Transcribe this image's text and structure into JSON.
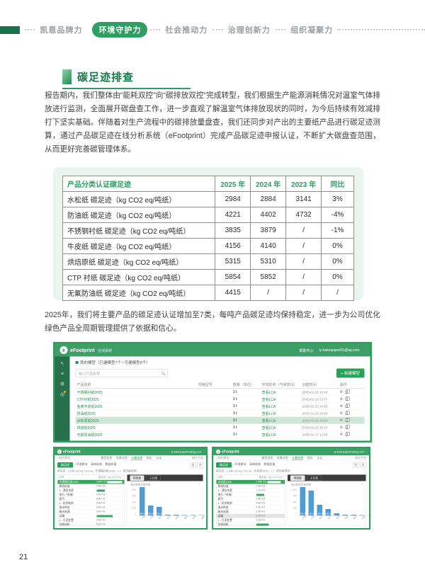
{
  "page_number": "21",
  "colors": {
    "accent_green": "#2f9e63",
    "app_border_green": "#2aa158",
    "bar_blue": "#4f9bd5",
    "panel_bg": "#e9f4ee"
  },
  "top_nav": {
    "items": [
      {
        "label": "凯恩品牌力",
        "cls": ""
      },
      {
        "label": "环境守护力",
        "cls": "active"
      },
      {
        "label": "社会推动力",
        "cls": ""
      },
      {
        "label": "治理创新力",
        "cls": ""
      },
      {
        "label": "组织凝聚力",
        "cls": ""
      }
    ]
  },
  "section": {
    "title": "碳足迹排查"
  },
  "paragraphs": {
    "p1": "报告期内，我们整体由“能耗双控”向“碳排放双控”完成转型，我们根据生产能源消耗情况对温室气体排放进行监测，全面展开碳盘查工作，进一步直观了解温室气体排放现状的同时，为今后持续有效减排打下坚实基础。伴随着对生产流程中的碳排放量盘查，我们还同步对产出的主要纸产品进行碳足迹测算，通过产品碳足迹在线分析系统（eFootprint）完成产品碳足迹申报认证，不断扩大碳盘查范围，从而更好完善碳管理体系。",
    "p2": "2025年，我们将主要产品的碳足迹认证增加至7类，每吨产品碳足迹均保持稳定，进一步为公司优化绿色产品全周期管理提供了依据和信心。"
  },
  "footprint_table": {
    "headers": [
      "产品分类认证碳足迹",
      "2025 年",
      "2024 年",
      "2023 年",
      "同比"
    ],
    "rows": [
      [
        "水松纸 碳足迹（kg CO2 eq/吨纸）",
        "2984",
        "2884",
        "3141",
        "3%"
      ],
      [
        "防油纸 碳足迹（kg CO2 eq/吨纸）",
        "4221",
        "4402",
        "4732",
        "-4%"
      ],
      [
        "不锈钢衬纸 碳足迹（kg CO2 eq/吨纸）",
        "3835",
        "3879",
        "/",
        "-1%"
      ],
      [
        "牛皮纸 碳足迹（kg CO2 eq/吨纸）",
        "4156",
        "4140",
        "/",
        "0%"
      ],
      [
        "烘焙原纸 碳足迹（kg CO2 eq/吨纸）",
        "5315",
        "5310",
        "/",
        "0%"
      ],
      [
        "CTP 衬纸 碳足迹（kg CO2 eq/吨纸）",
        "5854",
        "5852",
        "/",
        "0%"
      ],
      [
        "无氟防油纸 碳足迹（kg CO2 eq/吨纸）",
        "4415",
        "/",
        "/",
        "/"
      ]
    ]
  },
  "app_main": {
    "brand": "eFootprint",
    "brand_sub": "在线系统",
    "help_link": "帮助中心",
    "account": "ly-kaienpaper01@qq.com",
    "sidebar_icons": [
      {
        "name": "cursor-icon",
        "glyph": "↖",
        "badge_cls": ""
      },
      {
        "name": "menu-icon",
        "glyph": "≡",
        "badge_cls": ""
      },
      {
        "name": "gear-icon",
        "glyph": "⚙",
        "badge_cls": ""
      },
      {
        "name": "bell-icon",
        "glyph": "◎",
        "badge_cls": "on"
      }
    ],
    "breadcrumb": "我的模型（已建模型7个 / 可建模型8个）",
    "search_placeholder": "输入产品名称",
    "new_button": "+ 新建模型",
    "columns": [
      "产品名称",
      "规格型号",
      "数量（单位）",
      "环境影响（气候变化）",
      "创建时间",
      "操作"
    ],
    "rows": [
      {
        "name": "不锈钢衬纸2025",
        "spec": "",
        "qty": "1 t",
        "impact": "查看LCA",
        "time": "2025-01-23 13:42",
        "cls": ""
      },
      {
        "name": "CTP衬纸2025",
        "spec": "",
        "qty": "1 t",
        "impact": "查看LCA",
        "time": "2025-01-23 13:37",
        "cls": ""
      },
      {
        "name": "金黄牛皮纸2025",
        "spec": "",
        "qty": "1 t",
        "impact": "查看LCA",
        "time": "2025-01-23 14:55",
        "cls": ""
      },
      {
        "name": "防油纸2025",
        "spec": "",
        "qty": "1 t",
        "impact": "查看LCA",
        "time": "2025-01-23 14:46",
        "cls": ""
      },
      {
        "name": "水松原纸2025",
        "spec": "",
        "qty": "1 t",
        "impact": "查看LCA",
        "time": "2025-01-23 14:02",
        "cls": "row-hl"
      },
      {
        "name": "烘焙纸2025",
        "spec": "",
        "qty": "1 t",
        "impact": "查看LCA",
        "time": "2025-01-23 15:27",
        "cls": ""
      },
      {
        "name": "无氟防油纸2025",
        "spec": "",
        "qty": "1 t",
        "impact": "查看LCA",
        "time": "2025-01-17 12:55",
        "cls": ""
      }
    ]
  },
  "app_mini": [
    {
      "brand": "eFootprint",
      "account": "ly-kaienpaper01@qq.com",
      "back_link": "‹ 我的模型",
      "nav_links": [
        {
          "label": "模型信息",
          "cls": ""
        },
        {
          "label": "实景过程",
          "cls": ""
        },
        {
          "label": "计算结果",
          "cls": "on"
        },
        {
          "label": "报告",
          "cls": ""
        },
        {
          "label": "认证",
          "cls": ""
        }
      ],
      "manual_link": "操作手册",
      "tabs": [
        {
          "label": "碳足迹",
          "cls": "tab-active"
        },
        {
          "label": "环境影响",
          "cls": ""
        },
        {
          "label": "清单结果",
          "cls": ""
        },
        {
          "label": "数据质量",
          "cls": ""
        }
      ],
      "view_buttons": [
        "图",
        "表"
      ],
      "info_line": "碳足迹：3.84E+03 kg CO2 eq（不锈钢衬纸2025，1 t，按贡献排序）",
      "list_headers": [
        "名称",
        "碳足迹（kg CO2 eq）"
      ],
      "rows": [
        {
          "name": "不锈钢衬纸2025",
          "value": "3.84E+03",
          "bar": 55,
          "cls": "hl"
        },
        {
          "name": "原纸抄造",
          "value": "7.9E+02",
          "bar": 0,
          "cls": ""
        },
        {
          "name": "1 - 漂白木浆",
          "value": "",
          "bar": 30,
          "cls": ""
        },
        {
          "name": "电力（市电）",
          "value": "2.4E+02",
          "bar": 0,
          "cls": ""
        },
        {
          "name": "蒸汽",
          "value": "8.6E+01",
          "bar": 0,
          "cls": ""
        },
        {
          "name": "1 - 化学助剂",
          "value": "5.2E+01",
          "bar": 0,
          "cls": ""
        },
        {
          "name": "清水供应",
          "value": "3.1E+01",
          "bar": 0,
          "cls": ""
        },
        {
          "name": "废水处理",
          "value": "2.4E+01",
          "bar": 0,
          "cls": ""
        },
        {
          "name": "运输",
          "value": "",
          "bar": 60,
          "cls": ""
        },
        {
          "name": "1 - 污泥处置",
          "value": "9.6E+00",
          "bar": 0,
          "cls": ""
        },
        {
          "name": "包装材料",
          "value": "5.2E+00",
          "bar": 0,
          "cls": ""
        },
        {
          "name": "其他",
          "value": "2.1E+00",
          "bar": 0,
          "cls": ""
        }
      ],
      "toggle": [
        {
          "label": "排放量",
          "cls": "seg-on"
        },
        {
          "label": "占比图",
          "cls": ""
        }
      ],
      "chart": {
        "type": "bar",
        "title": "各过程碳足迹贡献",
        "yticks": [
          "800",
          "600",
          "400",
          "200",
          "0"
        ],
        "bars": [
          {
            "v": 100,
            "label": "7.9E+02",
            "x": "抄纸"
          },
          {
            "v": 35,
            "label": "2.8E+02",
            "x": "木浆"
          },
          {
            "v": 30,
            "label": "2.4E+02",
            "x": "电力"
          },
          {
            "v": 3,
            "label": "",
            "x": "蒸汽"
          },
          {
            "v": 2,
            "label": "",
            "x": "助剂"
          },
          {
            "v": 1.5,
            "label": "",
            "x": "清水"
          },
          {
            "v": 1,
            "label": "",
            "x": "废水"
          },
          {
            "v": 1,
            "label": "",
            "x": "运输"
          },
          {
            "v": 0.8,
            "label": "",
            "x": "污泥"
          },
          {
            "v": 0.6,
            "label": "",
            "x": "包装"
          }
        ]
      }
    },
    {
      "brand": "eFootprint",
      "account": "ly-kaienpaper01@qq.com",
      "back_link": "‹ 我的模型",
      "nav_links": [
        {
          "label": "模型信息",
          "cls": ""
        },
        {
          "label": "实景过程",
          "cls": ""
        },
        {
          "label": "计算结果",
          "cls": "on"
        },
        {
          "label": "报告",
          "cls": ""
        },
        {
          "label": "认证",
          "cls": ""
        }
      ],
      "manual_link": "操作手册",
      "tabs": [
        {
          "label": "碳足迹",
          "cls": "tab-active"
        },
        {
          "label": "环境影响",
          "cls": ""
        },
        {
          "label": "清单结果",
          "cls": ""
        },
        {
          "label": "数据质量",
          "cls": ""
        }
      ],
      "view_buttons": [
        "图",
        "表"
      ],
      "info_line": "碳足迹：2.98E+03 kg CO2 eq（水松纸2025，1 t，按贡献排序）",
      "list_headers": [
        "名称",
        "碳足迹（kg CO2 eq）"
      ],
      "rows": [
        {
          "name": "水松纸2025",
          "value": "2.98E+03",
          "bar": 50,
          "cls": "hl"
        },
        {
          "name": "原纸抄造",
          "value": "1.2E+03",
          "bar": 0,
          "cls": ""
        },
        {
          "name": "1 - 漂白木浆",
          "value": "1.1E+03",
          "bar": 0,
          "cls": ""
        },
        {
          "name": "电力（市电）",
          "value": "",
          "bar": 28,
          "cls": ""
        },
        {
          "name": "蒸汽",
          "value": "2.6E+02",
          "bar": 0,
          "cls": ""
        },
        {
          "name": "1 - 化学助剂",
          "value": "9.8E+01",
          "bar": 0,
          "cls": ""
        },
        {
          "name": "清水供应",
          "value": "4.2E+01",
          "bar": 0,
          "cls": ""
        },
        {
          "name": "废水处理",
          "value": "2.9E+01",
          "bar": 0,
          "cls": ""
        },
        {
          "name": "运输",
          "value": "2.2E+01",
          "bar": 0,
          "cls": "hlg"
        },
        {
          "name": "1 - 污泥处置",
          "value": "1.1E+01",
          "bar": 0,
          "cls": ""
        },
        {
          "name": "包装材料",
          "value": "",
          "bar": 45,
          "cls": ""
        },
        {
          "name": "其他",
          "value": "3.4E+00",
          "bar": 0,
          "cls": ""
        }
      ],
      "toggle": [
        {
          "label": "排放量",
          "cls": "seg-on"
        },
        {
          "label": "占比图",
          "cls": ""
        }
      ],
      "chart": {
        "type": "bar",
        "title": "各过程碳足迹贡献",
        "yticks": [
          "1,200",
          "900",
          "600",
          "300",
          "0"
        ],
        "bars": [
          {
            "v": 100,
            "label": "1.2E+03",
            "x": "抄纸"
          },
          {
            "v": 88,
            "label": "1.1E+03",
            "x": "木浆"
          },
          {
            "v": 38,
            "label": "4.5E+02",
            "x": "电力"
          },
          {
            "v": 22,
            "label": "2.6E+02",
            "x": "蒸汽"
          },
          {
            "v": 8,
            "label": "",
            "x": "助剂"
          },
          {
            "v": 3,
            "label": "",
            "x": "清水"
          },
          {
            "v": 2,
            "label": "",
            "x": "废水"
          },
          {
            "v": 1,
            "label": "",
            "x": "运输"
          },
          {
            "v": 1,
            "label": "",
            "x": "污泥"
          },
          {
            "v": 1,
            "label": "",
            "x": "包装"
          },
          {
            "v": 0.5,
            "label": "",
            "x": "其他"
          }
        ]
      }
    }
  ]
}
